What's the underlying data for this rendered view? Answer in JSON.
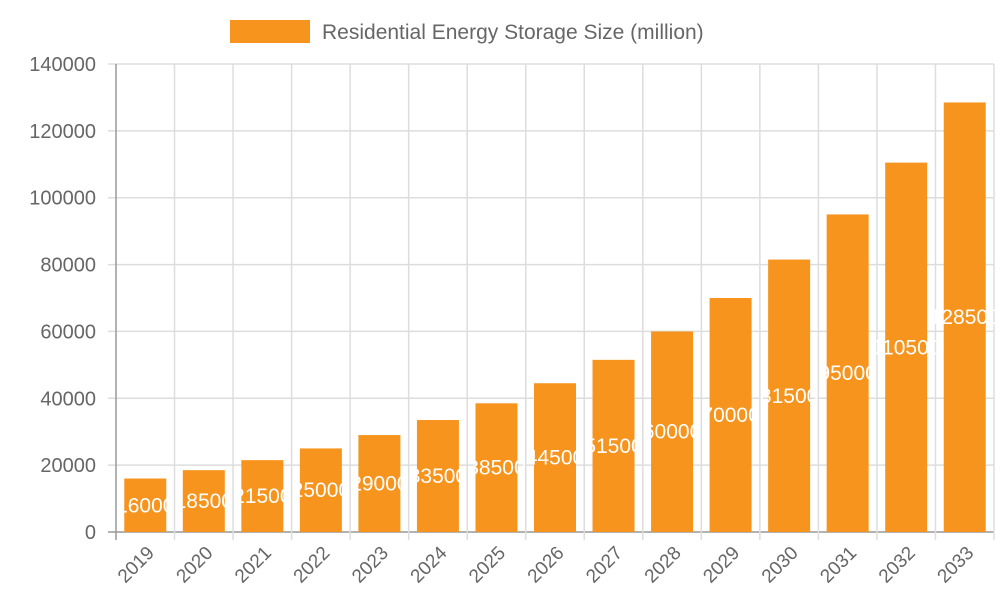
{
  "chart_data": {
    "type": "bar",
    "title": "",
    "xlabel": "",
    "ylabel": "",
    "categories": [
      "2019",
      "2020",
      "2021",
      "2022",
      "2023",
      "2024",
      "2025",
      "2026",
      "2027",
      "2028",
      "2029",
      "2030",
      "2031",
      "2032",
      "2033"
    ],
    "series": [
      {
        "name": "Residential Energy Storage Size (million)",
        "values": [
          16000,
          18500,
          21500,
          25000,
          29000,
          33500,
          38500,
          44500,
          51500,
          60000,
          70000,
          81500,
          95000,
          110500,
          128500
        ],
        "color": "#f7941e"
      }
    ],
    "ylim": [
      0,
      140000
    ],
    "yticks": [
      0,
      20000,
      40000,
      60000,
      80000,
      100000,
      120000,
      140000
    ],
    "grid": true,
    "legend_position": "top",
    "data_labels": true,
    "data_label_color": "#ffffff"
  }
}
